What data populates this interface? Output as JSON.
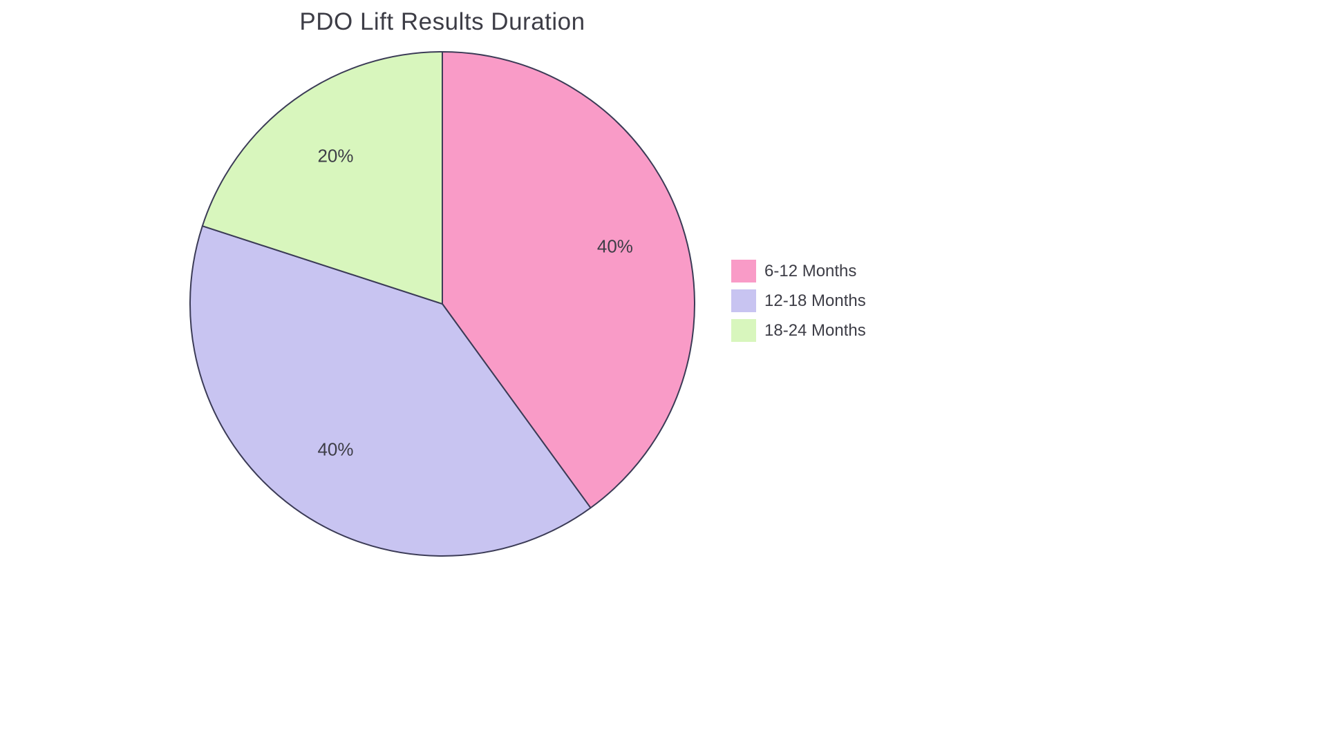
{
  "chart_data": {
    "type": "pie",
    "title": "PDO Lift Results Duration",
    "direction": "clockwise",
    "start_angle_deg": 0,
    "legend_position": "right",
    "outline_color": "#3B3B56",
    "label_color": "#3D3D46",
    "title_color": "#3D3D46",
    "background_color": "#FFFFFF",
    "slices": [
      {
        "label": "6-12 Months",
        "value": 40,
        "pct_label": "40%",
        "color": "#F99BC7"
      },
      {
        "label": "12-18 Months",
        "value": 40,
        "pct_label": "40%",
        "color": "#C8C4F1"
      },
      {
        "label": "18-24 Months",
        "value": 20,
        "pct_label": "20%",
        "color": "#D8F6BD"
      }
    ]
  }
}
